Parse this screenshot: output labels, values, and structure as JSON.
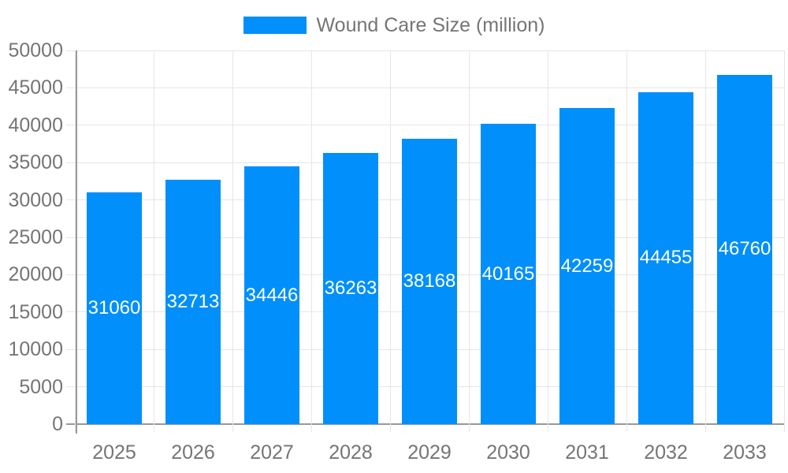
{
  "legend": {
    "label": "Wound Care Size (million)"
  },
  "colors": {
    "bar": "#008FFB",
    "grid": "#E6E6E6",
    "axis": "#999999",
    "tick_text": "#757575",
    "legend_text": "#757575",
    "bar_label_text": "#FFFFFF",
    "background": "#FFFFFF"
  },
  "chart_data": {
    "type": "bar",
    "title": "",
    "legend_entries": [
      "Wound Care Size (million)"
    ],
    "legend_position": "top-center",
    "categories": [
      "2025",
      "2026",
      "2027",
      "2028",
      "2029",
      "2030",
      "2031",
      "2032",
      "2033"
    ],
    "series": [
      {
        "name": "Wound Care Size (million)",
        "values": [
          31060,
          32713,
          34446,
          36263,
          38168,
          40165,
          42259,
          44455,
          46760
        ]
      }
    ],
    "bar_value_labels": [
      "31060",
      "32713",
      "34446",
      "36263",
      "38168",
      "40165",
      "42259",
      "44455",
      "46760"
    ],
    "xlabel": "",
    "ylabel": "",
    "ylim": [
      0,
      50000
    ],
    "ytick_step": 5000,
    "ytick_labels": [
      "0",
      "5000",
      "10000",
      "15000",
      "20000",
      "25000",
      "30000",
      "35000",
      "40000",
      "45000",
      "50000"
    ],
    "grid": true
  }
}
